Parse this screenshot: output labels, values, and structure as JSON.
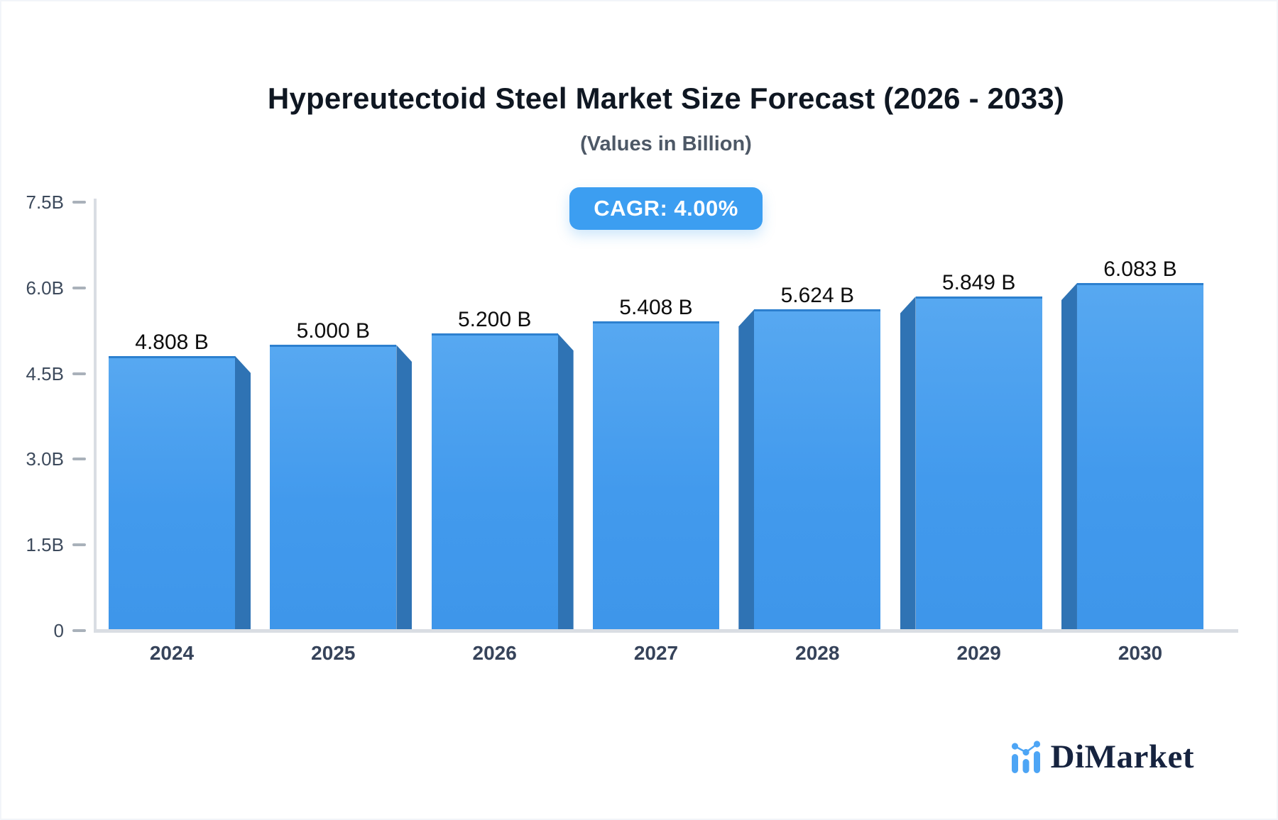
{
  "header": {
    "title": "Hypereutectoid Steel Market Size Forecast (2026 - 2033)",
    "subtitle": "(Values in Billion)",
    "cagr_badge": "CAGR: 4.00%"
  },
  "chart_data": {
    "type": "bar",
    "title": "Hypereutectoid Steel Market Size Forecast (2026 - 2033)",
    "subtitle": "(Values in Billion)",
    "cagr": "4.00%",
    "categories": [
      "2024",
      "2025",
      "2026",
      "2027",
      "2028",
      "2029",
      "2030"
    ],
    "values": [
      4.808,
      5.0,
      5.2,
      5.408,
      5.624,
      5.849,
      6.083
    ],
    "value_labels": [
      "4.808 B",
      "5.000 B",
      "5.200 B",
      "5.408 B",
      "5.624 B",
      "5.849 B",
      "6.083 B"
    ],
    "unit": "Billion",
    "ylim": [
      0,
      7.5
    ],
    "y_ticks": [
      {
        "value": 7.5,
        "label": "7.5B"
      },
      {
        "value": 6.0,
        "label": "6.0B"
      },
      {
        "value": 4.5,
        "label": "4.5B"
      },
      {
        "value": 3.0,
        "label": "3.0B"
      },
      {
        "value": 1.5,
        "label": "1.5B"
      },
      {
        "value": 0,
        "label": "0"
      }
    ],
    "grid": false,
    "legend": false,
    "bar_color": "#459EEF",
    "bar_side_color": "#2F73B4"
  },
  "logo": {
    "text": "DiMarket",
    "icon": "bar-chart-icon",
    "icon_color": "#4da5f5",
    "text_color": "#16233f"
  },
  "colors": {
    "accent_blue": "#3C9EF1",
    "axis_gray": "#D9DDE3",
    "tick_text": "#3D4A5C",
    "title_text": "#0F1722"
  }
}
